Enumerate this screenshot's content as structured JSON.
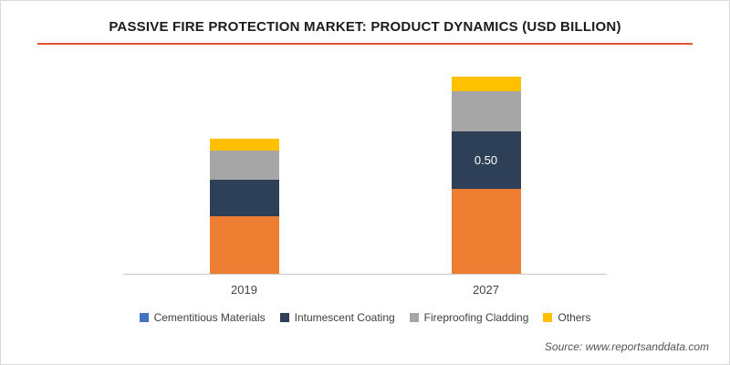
{
  "chart_data": {
    "type": "bar",
    "stacked": true,
    "title": "PASSIVE FIRE PROTECTION MARKET: PRODUCT DYNAMICS (USD BILLION)",
    "categories": [
      "2019",
      "2027"
    ],
    "series": [
      {
        "name": "Cementitious Materials",
        "color": "#ED7D31",
        "swatch": "#4472C4",
        "values": [
          0.5,
          0.74
        ]
      },
      {
        "name": "Intumescent Coating",
        "color": "#2E4057",
        "swatch": "#2E4057",
        "values": [
          0.32,
          0.5
        ]
      },
      {
        "name": "Fireproofing Cladding",
        "color": "#A6A6A6",
        "swatch": "#A6A6A6",
        "values": [
          0.25,
          0.35
        ]
      },
      {
        "name": "Others",
        "color": "#FFC000",
        "swatch": "#FFC000",
        "values": [
          0.1,
          0.13
        ]
      }
    ],
    "data_labels": [
      {
        "category": "2027",
        "series": "Intumescent Coating",
        "text": "0.50"
      }
    ],
    "legend_position": "bottom",
    "grid": false,
    "ylim": [
      0,
      2
    ]
  },
  "accent": {
    "title_rule_color": "#E8512E",
    "axis_color": "#C8C8C8"
  },
  "source": "Source: www.reportsanddata.com"
}
